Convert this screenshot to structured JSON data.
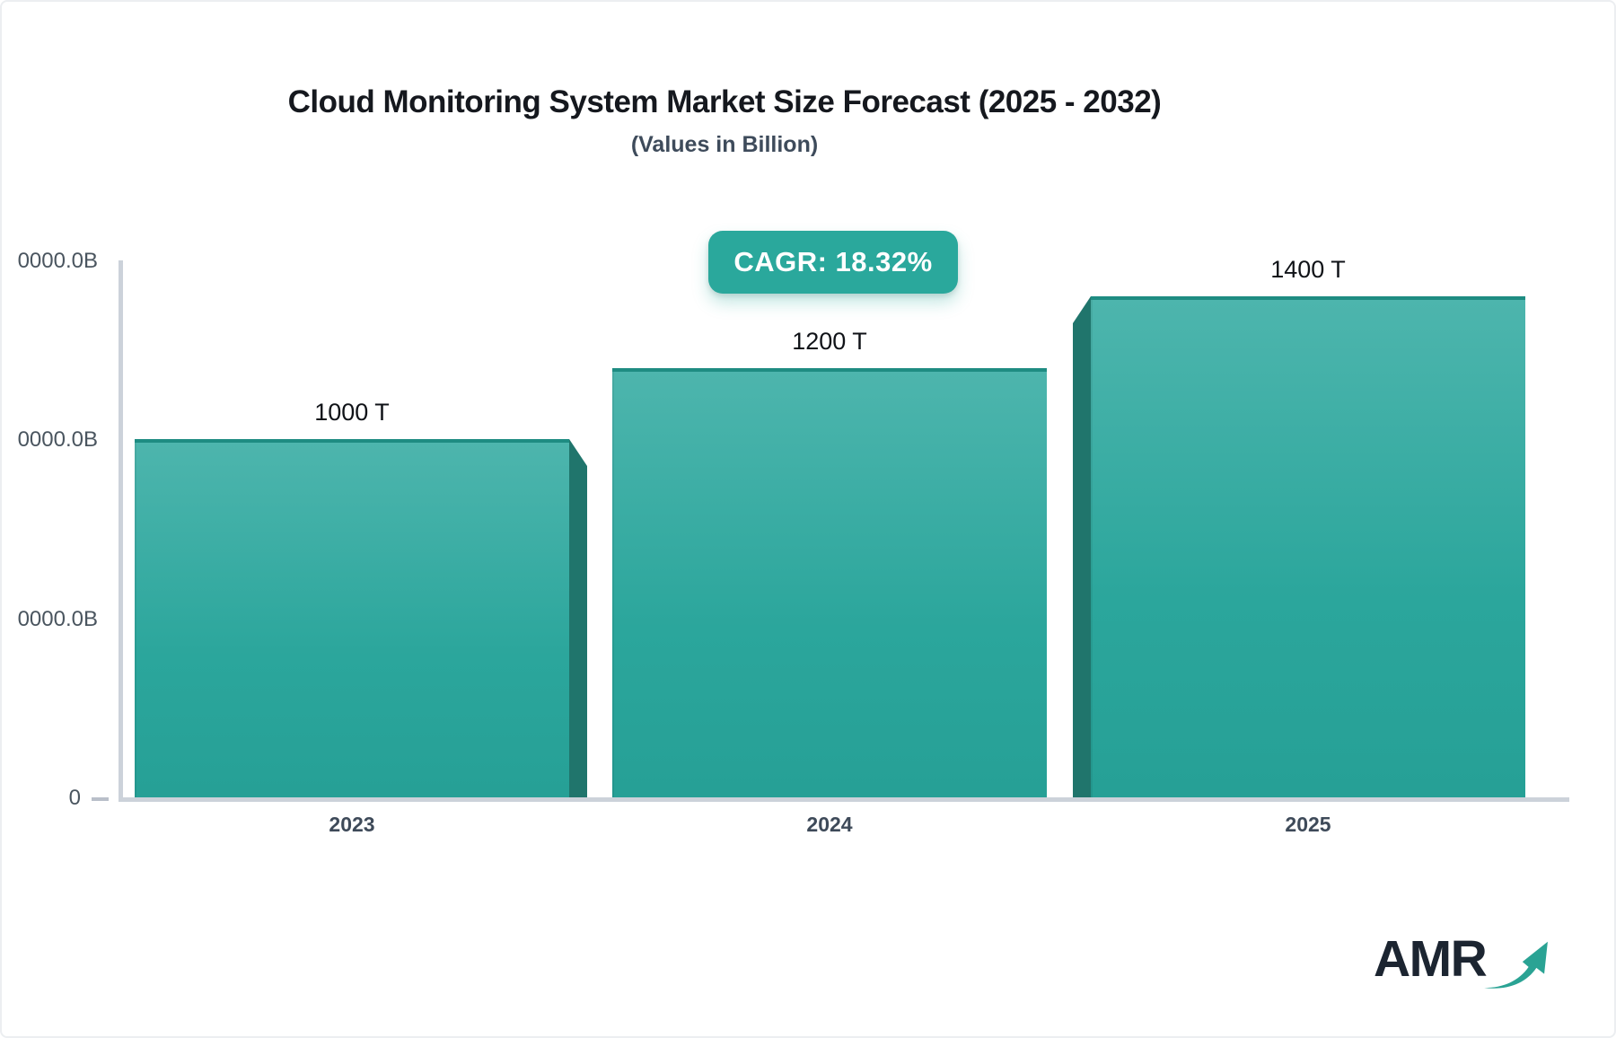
{
  "chart_data": {
    "type": "bar",
    "title": "Cloud Monitoring System Market Size Forecast (2025 - 2032)",
    "subtitle": "(Values in Billion)",
    "badge_label": "CAGR: 18.32%",
    "categories": [
      "2023",
      "2024",
      "2025"
    ],
    "values": [
      1000,
      1200,
      1400
    ],
    "bar_value_labels": [
      "1000 T",
      "1200 T",
      "1400 T"
    ],
    "y_axis_tick_labels_bottom_to_top": [
      "0",
      "0000.0B",
      "0000.0B",
      "0000.0B"
    ],
    "ylim": [
      0,
      1500
    ],
    "grid": false,
    "legend": false,
    "xlabel": "",
    "ylabel": "",
    "colors": {
      "bar_top": "#4db5ad",
      "bar_bottom": "#26a096",
      "bar_top_edge": "#1e8c82",
      "bar_side_3d": "#20756c",
      "badge_background": "#2aa89c",
      "badge_text": "#ffffff",
      "axis_line": "#ccd2da",
      "title_text": "#15181e",
      "subtitle_text": "#3e4b5b",
      "logo_accent": "#2aa394"
    }
  },
  "footer": {
    "logo_text": "AMR"
  }
}
